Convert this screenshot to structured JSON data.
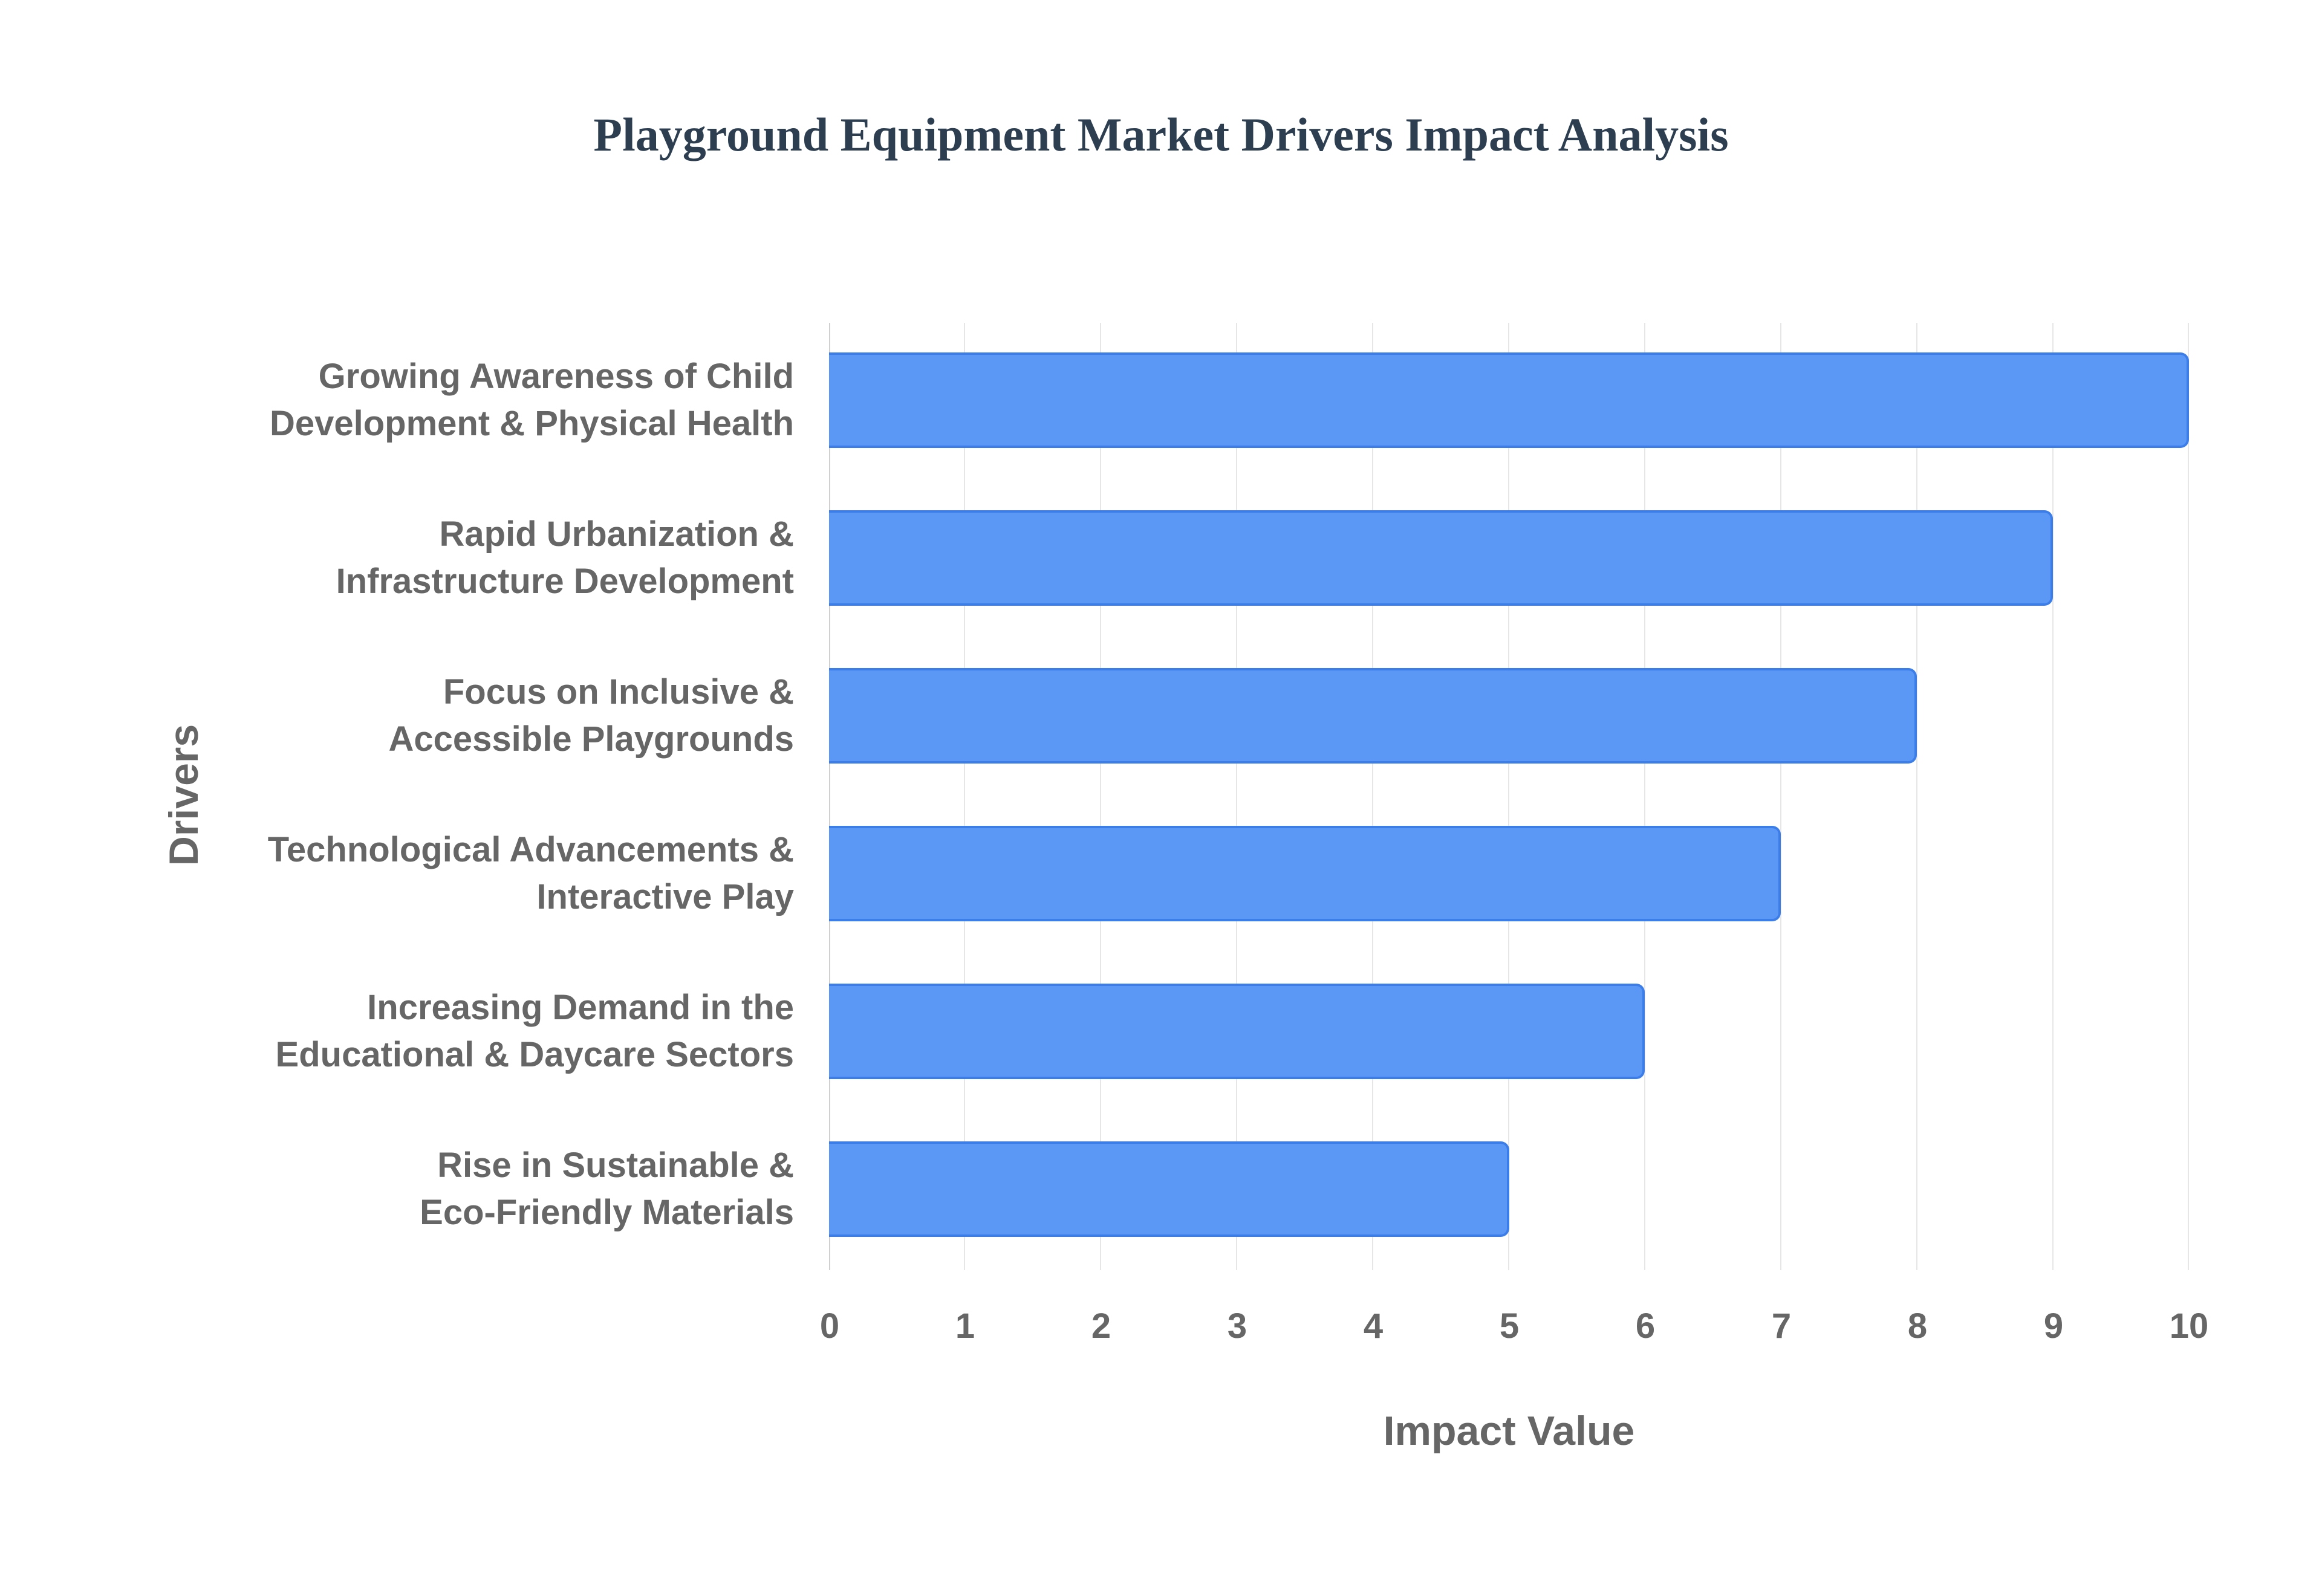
{
  "chart_data": {
    "type": "bar",
    "orientation": "horizontal",
    "title": "Playground Equipment Market Drivers Impact Analysis",
    "xlabel": "Impact Value",
    "ylabel": "Drivers",
    "xlim": [
      0,
      10
    ],
    "x_ticks": [
      "0",
      "1",
      "2",
      "3",
      "4",
      "5",
      "6",
      "7",
      "8",
      "9",
      "10"
    ],
    "grid": true,
    "legend": null,
    "categories": [
      [
        "Growing Awareness of Child",
        "Development & Physical Health"
      ],
      [
        "Rapid Urbanization &",
        "Infrastructure Development"
      ],
      [
        "Focus on Inclusive &",
        "Accessible Playgrounds"
      ],
      [
        "Technological Advancements &",
        "Interactive Play"
      ],
      [
        "Increasing Demand in the",
        "Educational & Daycare Sectors"
      ],
      [
        "Rise in Sustainable &",
        "Eco-Friendly Materials"
      ]
    ],
    "values": [
      10,
      9,
      8,
      7,
      6,
      5
    ],
    "colors": {
      "bar_fill": "#5b97f5",
      "bar_border": "#3b7de9",
      "title": "#2c3e50",
      "axis_text": "#666666",
      "grid": "#e6e6e6"
    }
  }
}
